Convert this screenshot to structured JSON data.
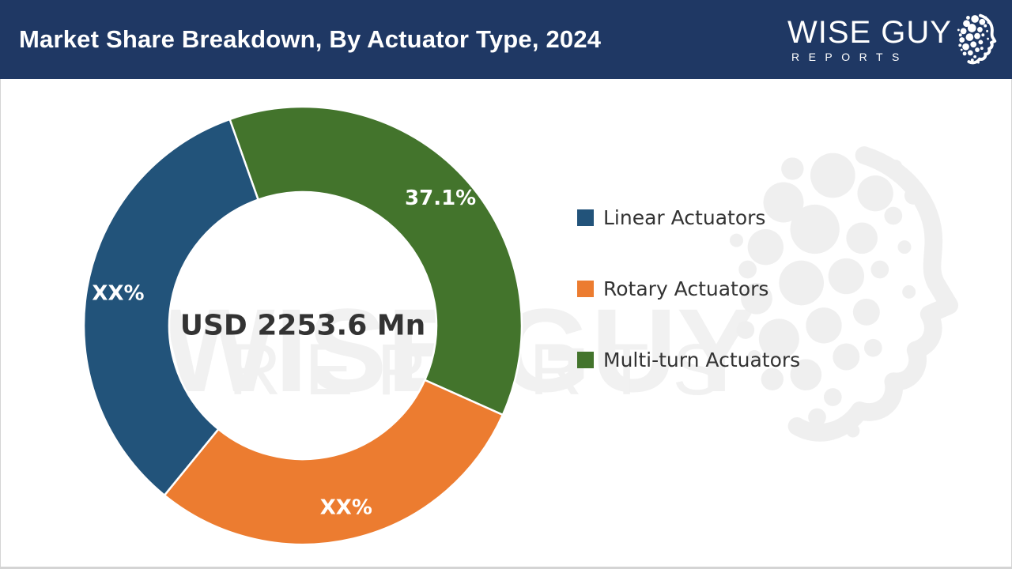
{
  "header": {
    "logo": {
      "name": "WISE GUY",
      "sub": "REPORTS"
    }
  },
  "chart_data": {
    "type": "donut",
    "title": "Market Share Breakdown, By Actuator Type, 2024",
    "center_label": "USD 2253.6 Mn",
    "start_angle_deg": -19.5,
    "hole_ratio": 0.61,
    "legend_position": "right",
    "slices": [
      {
        "name": "Multi-turn Actuators",
        "label": "37.1%",
        "value": 37.1,
        "color": "#43742c"
      },
      {
        "name": "Rotary Actuators",
        "label": "XX%",
        "value": 29.2,
        "color": "#ec7c30"
      },
      {
        "name": "Linear Actuators",
        "label": "XX%",
        "value": 33.7,
        "color": "#22537a"
      }
    ],
    "legend": [
      {
        "label": "Linear Actuators",
        "color": "#22537a"
      },
      {
        "label": "Rotary Actuators",
        "color": "#ec7c30"
      },
      {
        "label": "Multi-turn Actuators",
        "color": "#43742c"
      }
    ]
  },
  "watermark": {
    "line1": "WISE GUY",
    "line2": "REPORTS"
  },
  "colors": {
    "header_bg": "#1f3864",
    "slice_label": "#ffffff",
    "center_text": "#333333",
    "legend_text": "#333333",
    "watermark": "#f1f1f1",
    "border": "#d4d4d4"
  }
}
